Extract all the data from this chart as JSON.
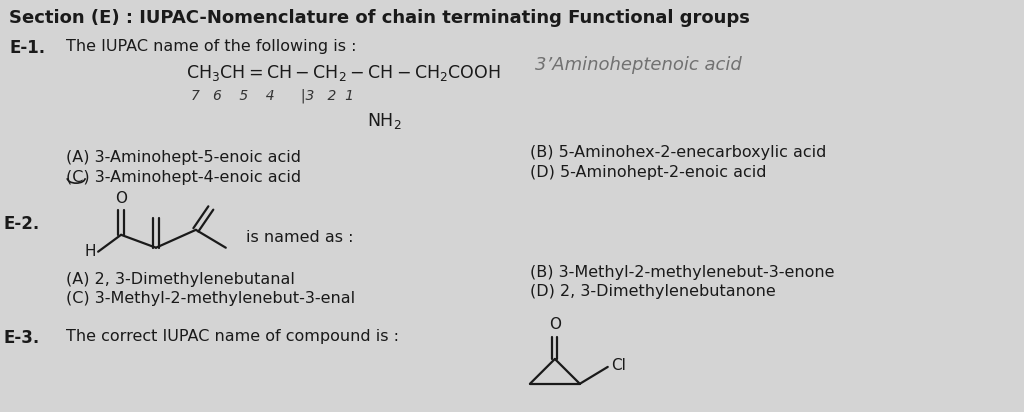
{
  "background_color": "#d4d4d4",
  "title": "Section (E) : IUPAC-Nomenclature of chain terminating Functional groups",
  "title_fontsize": 13.0,
  "font_color": "#1a1a1a",
  "mol_color": "#1a1a1a",
  "handwritten_color": "#666666",
  "fs_opt": 11.5,
  "fs_lbl": 12,
  "fs_q": 11.5,
  "fs_formula": 12.5,
  "content": {
    "E1_label": "E-1.",
    "E1_question": "The IUPAC name of the following is :",
    "E1_formula": "CH₃CH═CH−CH₂−CH−CH₂COOH",
    "E1_nums": "7   6    5    4      3   2  1",
    "E1_sub": "NH₂",
    "E1_handwritten": "3’Aminoheptenoic acid",
    "E1_optA": "(A) 3-Aminohept-5-enoic acid",
    "E1_optB": "(B) 5-Aminohex-2-enecarboxylic acid",
    "E1_optC": "(C) 3-Aminohept-4-enoic acid",
    "E1_optD": "(D) 5-Aminohept-2-enoic acid",
    "E2_label": "E-2.",
    "E2_question": "is named as :",
    "E2_optA": "(A) 2, 3-Dimethylenebutanal",
    "E2_optB": "(B) 3-Methyl-2-methylenebut-3-enone",
    "E2_optC": "(C) 3-Methyl-2-methylenebut-3-enal",
    "E2_optD": "(D) 2, 3-Dimethylenebutanone",
    "E3_label": "E-3.",
    "E3_question": "The correct IUPAC name of compound is :"
  }
}
